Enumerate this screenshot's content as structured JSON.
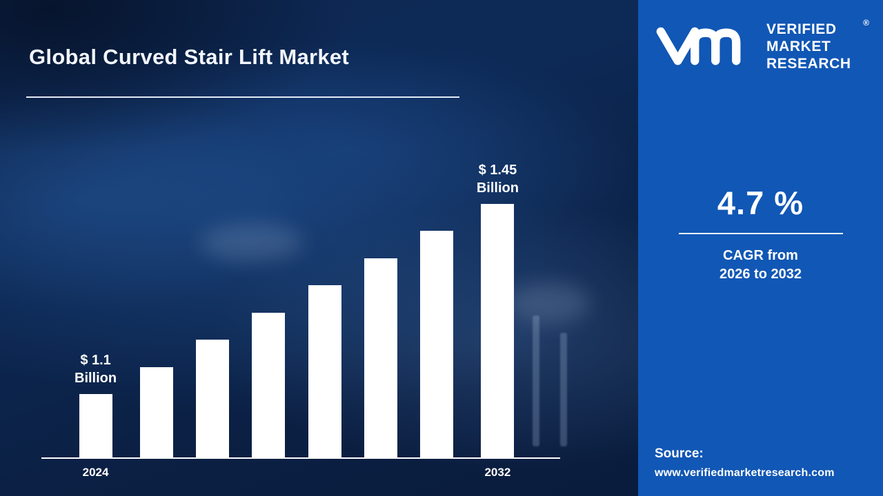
{
  "title": "Global Curved Stair Lift Market",
  "chart_data": {
    "type": "bar",
    "title": "Global Curved Stair Lift Market",
    "categories": [
      "2024",
      "",
      "",
      "",
      "",
      "",
      "",
      "2032"
    ],
    "values": [
      1.1,
      1.15,
      1.2,
      1.25,
      1.3,
      1.35,
      1.4,
      1.45
    ],
    "unit": "USD Billion",
    "ylim": [
      0,
      1.6
    ],
    "bar_color": "#ffffff",
    "grid": false,
    "legend": false,
    "annotations": [
      {
        "index": 0,
        "lines": [
          "$ 1.1",
          "Billion"
        ]
      },
      {
        "index": 7,
        "lines": [
          "$ 1.45",
          "Billion"
        ]
      }
    ]
  },
  "panel": {
    "monogram": "VM",
    "registered_mark": "®",
    "brand_lines": [
      "VERIFIED",
      "MARKET",
      "RESEARCH"
    ],
    "cagr_value": "4.7 %",
    "cagr_line1": "CAGR from",
    "cagr_line2": "2026 to 2032",
    "source_label": "Source:",
    "source_url": "www.verifiedmarketresearch.com"
  },
  "colors": {
    "panel_blue": "#1157b5",
    "bar_white": "#ffffff",
    "bg_navy": "#0b2147"
  }
}
